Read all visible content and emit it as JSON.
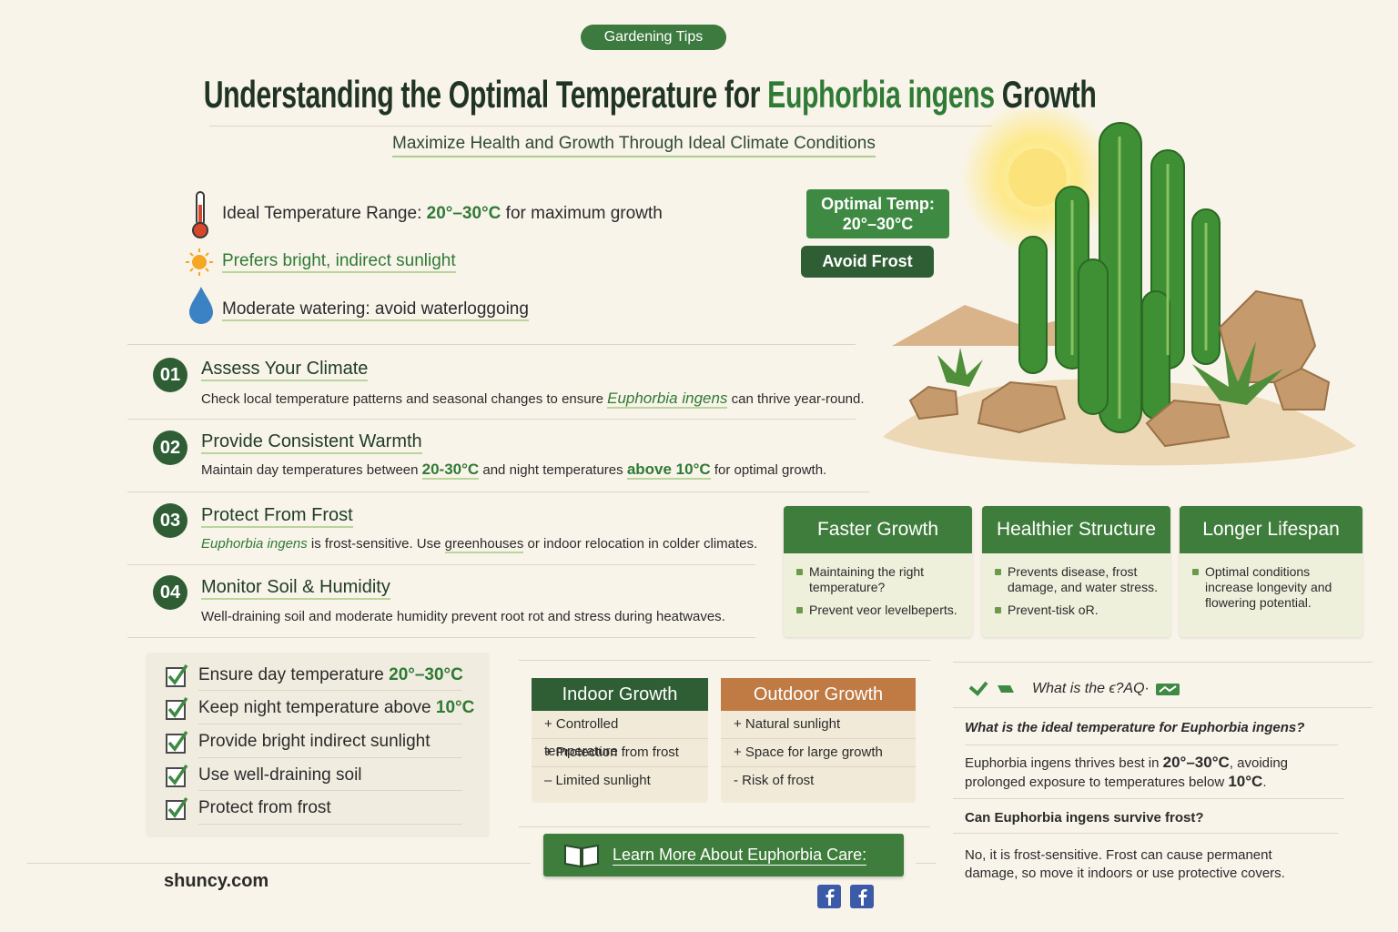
{
  "badge": "Gardening Tips",
  "title": {
    "lead": "Understanding the Optimal Temperature for ",
    "plant": "Euphorbia ingens",
    "tail": " Growth"
  },
  "subtitle": "Maximize Health and Growth Through Ideal Climate Conditions",
  "highlights": [
    [
      "Ideal Temperature Range: ",
      "20°–30°C",
      " for maximum growth"
    ],
    [
      "Prefers bright, indirect sunlight"
    ],
    [
      "Moderate watering: avoid waterloggoing"
    ]
  ],
  "tags": [
    [
      "Optimal Temp:",
      "20°–30°C"
    ],
    [
      "Avoid Frost"
    ]
  ],
  "steps": [
    {
      "number": "01",
      "title": "Assess Your Climate",
      "desc": [
        "Check local temperature patterns and seasonal changes to ensure ",
        "Euphorbia ingens",
        " can thrive year-round."
      ]
    },
    {
      "number": "02",
      "title": "Provide Consistent Warmth",
      "desc": [
        "Maintain day temperatures between ",
        "20-30°C",
        " and night temperatures ",
        "above 10°C",
        " for optimal growth."
      ]
    },
    {
      "number": "03",
      "title": "Protect From Frost",
      "desc": [
        "Euphorbia ingens",
        " is frost-sensitive. Use ",
        "greenhouses",
        " or indoor relocation in colder climates."
      ]
    },
    {
      "number": "04",
      "title": "Monitor Soil & Humidity",
      "desc": [
        "Well-draining soil and moderate humidity prevent root rot and stress during heatwaves."
      ]
    }
  ],
  "benefits": [
    {
      "title": "Faster Growth",
      "items": [
        "Maintaining the right temperature?",
        "Prevent veor levelbeperts."
      ]
    },
    {
      "title": "Healthier Structure",
      "items": [
        "Prevents disease, frost damage, and water stress.",
        "Prevent-tisk oR."
      ]
    },
    {
      "title": "Longer Lifespan",
      "items": [
        "Optimal conditions increase longevity and flowering potential."
      ]
    }
  ],
  "checklist": [
    [
      "Ensure day temperature ",
      "20°–30°C"
    ],
    [
      "Keep night temperature above ",
      "10°C"
    ],
    [
      "Provide bright indirect sunlight"
    ],
    [
      "Use well-draining soil"
    ],
    [
      "Protect from frost"
    ]
  ],
  "comparison": [
    {
      "title": "Indoor Growth",
      "items": [
        "+ Controlled temperature",
        "+ Protection from frost",
        "– Limited sunlight"
      ]
    },
    {
      "title": "Outdoor Growth",
      "items": [
        "+ Natural sunlight",
        "+ Space for large growth",
        "- Risk of frost"
      ]
    }
  ],
  "cta": "Learn More About Euphorbia Care:",
  "faq": {
    "header": "What is the ϵ?AQ·",
    "items": [
      {
        "question": "What is the ideal temperature for Euphorbia ingens?",
        "answer": [
          "Euphorbia ingens thrives best in ",
          "20°–30°C",
          ", avoiding prolonged exposure to temperatures below ",
          "10°C",
          "."
        ]
      },
      {
        "question": "Can Euphorbia ingens survive frost?",
        "answer": [
          "No, it is frost-sensitive. Frost can cause permanent damage, so move it indoors or use protective covers."
        ]
      }
    ]
  },
  "footer": "shuncy.com"
}
